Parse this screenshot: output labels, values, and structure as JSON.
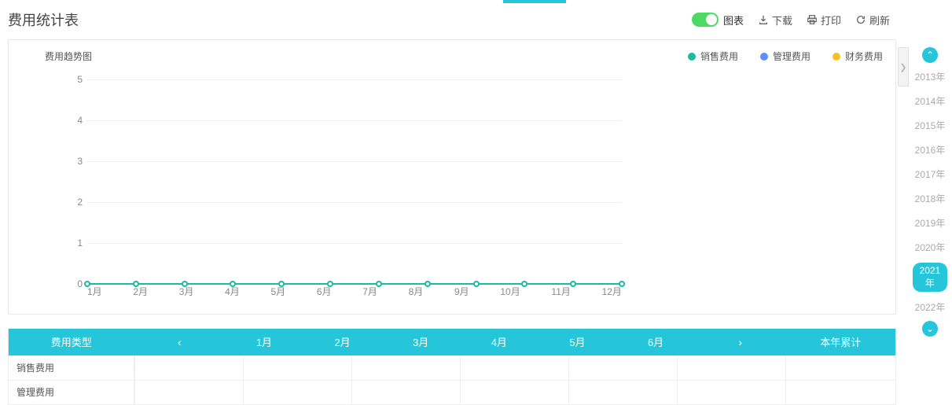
{
  "colors": {
    "accent": "#26c6da",
    "toggle_on": "#4cd964",
    "grid": "#eeeeee",
    "axis_text": "#888888",
    "text": "#555555",
    "border": "#e8e8e8"
  },
  "header": {
    "title": "费用统计表",
    "toggle_label": "图表",
    "download": "下载",
    "print": "打印",
    "refresh": "刷新"
  },
  "chart": {
    "type": "line",
    "title": "费用趋势图",
    "title_fontsize": 12,
    "label_fontsize": 12,
    "background_color": "#ffffff",
    "grid_color": "#eeeeee",
    "ylim": [
      0,
      5
    ],
    "ytick_step": 1,
    "y_ticks": [
      0,
      1,
      2,
      3,
      4,
      5
    ],
    "x_labels": [
      "1月",
      "2月",
      "3月",
      "4月",
      "5月",
      "6月",
      "7月",
      "8月",
      "9月",
      "10月",
      "11月",
      "12月"
    ],
    "series": [
      {
        "name": "销售费用",
        "color": "#1abc9c",
        "marker": "circle",
        "values": [
          0,
          0,
          0,
          0,
          0,
          0,
          0,
          0,
          0,
          0,
          0,
          0
        ]
      },
      {
        "name": "管理费用",
        "color": "#5b8ff9",
        "marker": "circle",
        "values": [
          0,
          0,
          0,
          0,
          0,
          0,
          0,
          0,
          0,
          0,
          0,
          0
        ]
      },
      {
        "name": "财务费用",
        "color": "#f6c022",
        "marker": "circle",
        "values": [
          0,
          0,
          0,
          0,
          0,
          0,
          0,
          0,
          0,
          0,
          0,
          0
        ]
      }
    ],
    "line_width": 2,
    "marker_size": 8
  },
  "table": {
    "header_bg": "#26c6da",
    "header_fg": "#ffffff",
    "type_col": "费用类型",
    "total_col": "本年累计",
    "month_cols": [
      "1月",
      "2月",
      "3月",
      "4月",
      "5月",
      "6月"
    ],
    "rows": [
      {
        "label": "销售费用",
        "cells": [
          "",
          "",
          "",
          "",
          "",
          ""
        ],
        "total": ""
      },
      {
        "label": "管理费用",
        "cells": [
          "",
          "",
          "",
          "",
          "",
          ""
        ],
        "total": ""
      }
    ]
  },
  "year_rail": {
    "years": [
      "2013年",
      "2014年",
      "2015年",
      "2016年",
      "2017年",
      "2018年",
      "2019年",
      "2020年",
      "2021年",
      "2022年"
    ],
    "active": "2021年"
  }
}
